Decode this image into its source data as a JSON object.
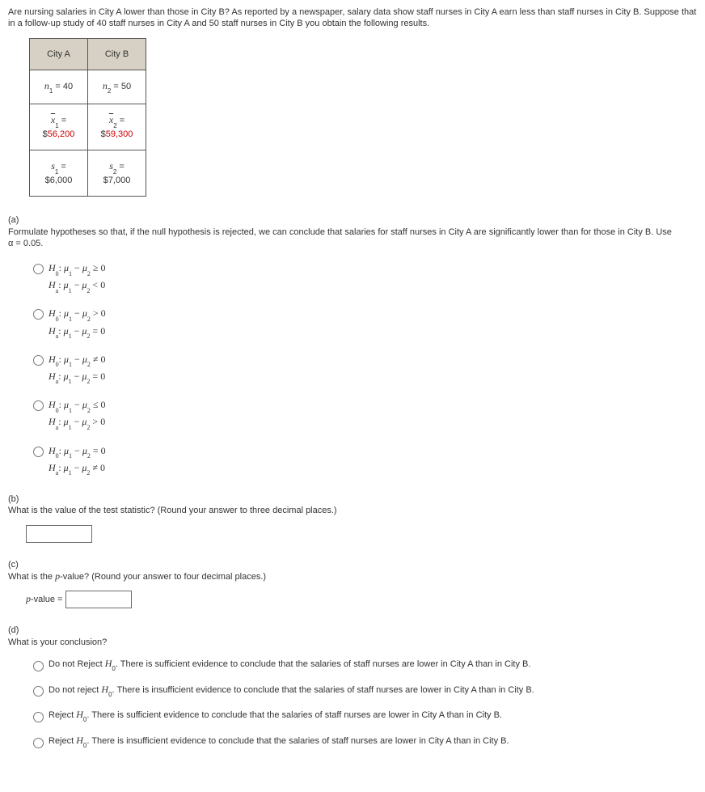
{
  "intro": "Are nursing salaries in City A lower than those in City B? As reported by a newspaper, salary data show staff nurses in City A earn less than staff nurses in City B. Suppose that in a follow-up study of 40 staff nurses in City A and 50 staff nurses in City B you obtain the following results.",
  "table": {
    "headers": [
      "City A",
      "City B"
    ],
    "rows": {
      "n": {
        "a_prefix": "n",
        "a_sub": "1",
        "a_val": " = 40",
        "b_prefix": "n",
        "b_sub": "2",
        "b_val": " = 50"
      },
      "mean": {
        "a_prefix": "x",
        "a_sub": "1",
        "a_pre": " = $",
        "a_val": "56,200",
        "b_prefix": "x",
        "b_sub": "2",
        "b_pre": " = $",
        "b_val": "59,300"
      },
      "sd": {
        "a_prefix": "s",
        "a_sub": "1",
        "a_val": " = $6,000",
        "b_prefix": "s",
        "b_sub": "2",
        "b_val": " = $7,000"
      }
    }
  },
  "parts": {
    "a": {
      "label": "(a)",
      "text": "Formulate hypotheses so that, if the null hypothesis is rejected, we can conclude that salaries for staff nurses in City A are significantly lower than for those in City B. Use α = 0.05.",
      "options": [
        {
          "h0": "H₀: μ₁ − μ₂ ≥ 0",
          "ha": "Hₐ: μ₁ − μ₂ < 0"
        },
        {
          "h0": "H₀: μ₁ − μ₂ > 0",
          "ha": "Hₐ: μ₁ − μ₂ = 0"
        },
        {
          "h0": "H₀: μ₁ − μ₂ ≠ 0",
          "ha": "Hₐ: μ₁ − μ₂ = 0"
        },
        {
          "h0": "H₀: μ₁ − μ₂ ≤ 0",
          "ha": "Hₐ: μ₁ − μ₂ > 0"
        },
        {
          "h0": "H₀: μ₁ − μ₂ = 0",
          "ha": "Hₐ: μ₁ − μ₂ ≠ 0"
        }
      ]
    },
    "b": {
      "label": "(b)",
      "text": "What is the value of the test statistic? (Round your answer to three decimal places.)",
      "input_width": 82
    },
    "c": {
      "label": "(c)",
      "text": "What is the p-value? (Round your answer to four decimal places.)",
      "field_label": "p-value = ",
      "input_width": 82
    },
    "d": {
      "label": "(d)",
      "text": "What is your conclusion?",
      "options": [
        "Do not Reject H₀. There is sufficient evidence to conclude that the salaries of staff nurses are lower in City A than in City B.",
        "Do not reject H₀. There is insufficient evidence to conclude that the salaries of staff nurses are lower in City A than in City B.",
        "Reject H₀. There is sufficient evidence to conclude that the salaries of staff nurses are lower in City A than in City B.",
        "Reject H₀. There is insufficient evidence to conclude that the salaries of staff nurses are lower in City A than in City B."
      ]
    }
  }
}
